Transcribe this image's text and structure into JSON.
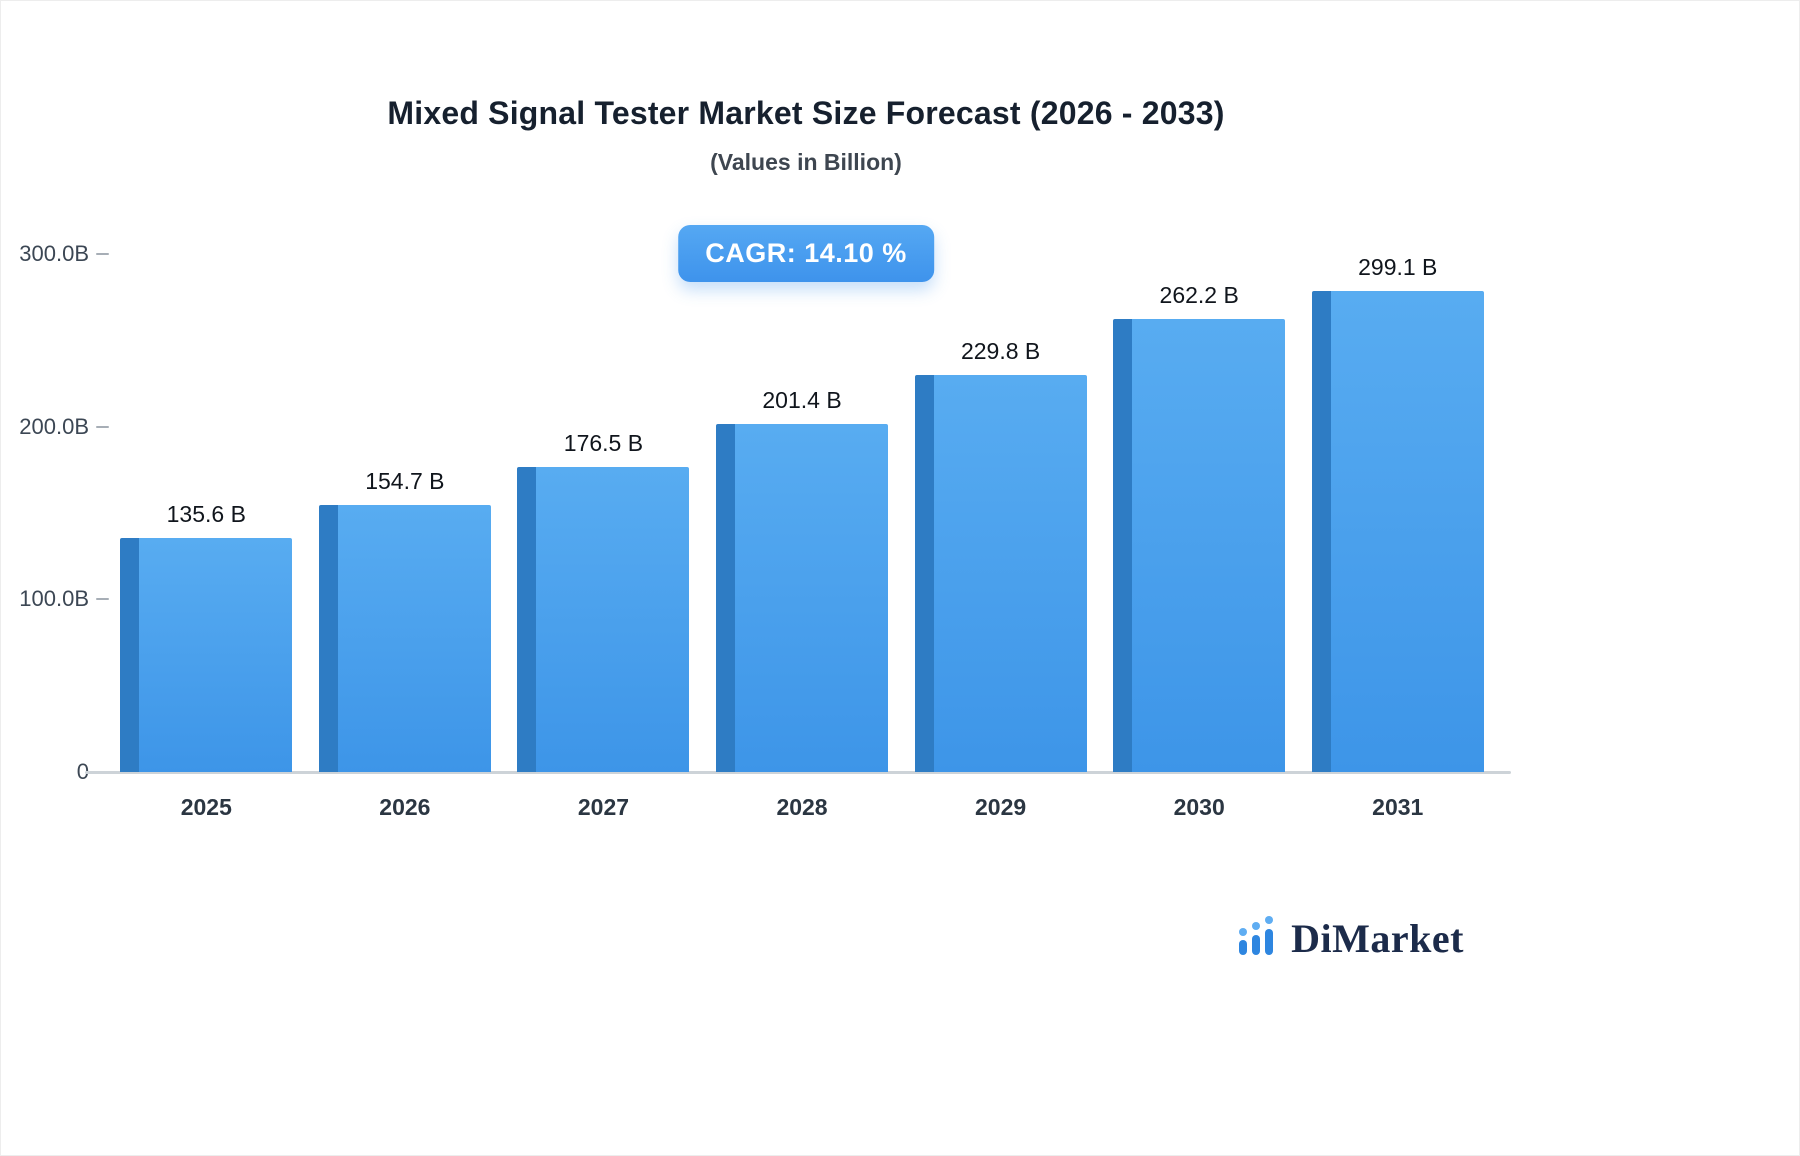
{
  "header": {
    "title": "Mixed Signal Tester Market Size Forecast (2026 - 2033)",
    "subtitle": "(Values in Billion)"
  },
  "badge": {
    "label": "CAGR: 14.10 %",
    "bg_top": "#55a8f3",
    "bg_bottom": "#3e93ec"
  },
  "chart_data": {
    "type": "bar",
    "title": "Mixed Signal Tester Market Size Forecast (2026 - 2033)",
    "subtitle": "(Values in Billion)",
    "categories": [
      "2025",
      "2026",
      "2027",
      "2028",
      "2029",
      "2030",
      "2031"
    ],
    "values": [
      135.6,
      154.7,
      176.5,
      201.4,
      229.8,
      262.2,
      299.1
    ],
    "value_labels": [
      "135.6 B",
      "154.7 B",
      "176.5 B",
      "201.4 B",
      "229.8 B",
      "262.2 B",
      "299.1 B"
    ],
    "xlabel": "",
    "ylabel": "",
    "ylim": [
      0,
      300
    ],
    "y_ticks": [
      {
        "label": "300.0B",
        "value": 300
      },
      {
        "label": "200.0B",
        "value": 200
      },
      {
        "label": "100.0B",
        "value": 100
      },
      {
        "label": "0",
        "value": 0
      }
    ],
    "grid": "off",
    "legend": "none",
    "bar_color_top": "#58acf1",
    "bar_color_bottom": "#3d95e8",
    "bar_side_color": "#2e7cc4"
  },
  "logo": {
    "text": "DiMarket",
    "icon": "bar-chart-logo-icon",
    "text_color": "#1c2b4a",
    "accent_color": "#2e86e0"
  }
}
